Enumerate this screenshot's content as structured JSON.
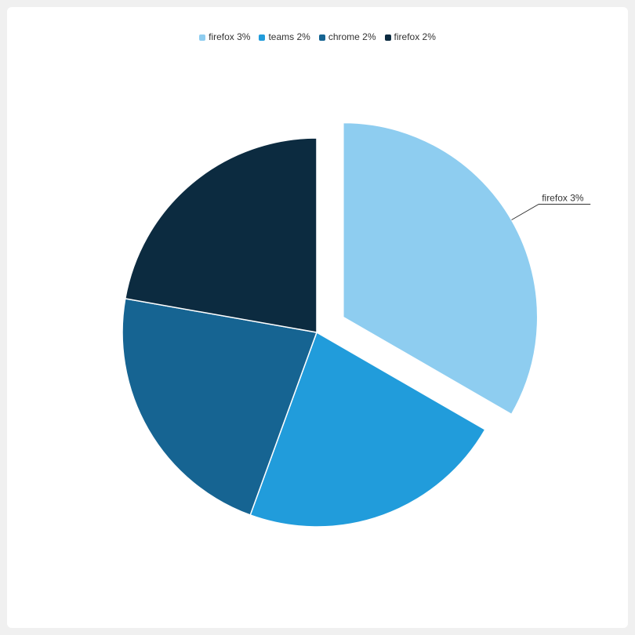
{
  "page": {
    "background_color": "#f0f0f0",
    "card_background_color": "#ffffff"
  },
  "chart_data": {
    "type": "pie",
    "title": "",
    "legend_position": "top",
    "direction": "clockwise",
    "start_angle_deg": 0,
    "total": 9,
    "slices": [
      {
        "name": "firefox",
        "value": 3,
        "legend_label": "firefox 3%",
        "color": "#8ecdf0",
        "exploded": true,
        "callout_label": "firefox 3%"
      },
      {
        "name": "teams",
        "value": 2,
        "legend_label": "teams 2%",
        "color": "#219cdb",
        "exploded": false,
        "callout_label": ""
      },
      {
        "name": "chrome",
        "value": 2,
        "legend_label": "chrome 2%",
        "color": "#166492",
        "exploded": false,
        "callout_label": ""
      },
      {
        "name": "firefox",
        "value": 2,
        "legend_label": "firefox 2%",
        "color": "#0c2b40",
        "exploded": false,
        "callout_label": ""
      }
    ],
    "label_color": "#333333",
    "label_line_color": "#333333",
    "slice_border_color": "#ffffff"
  }
}
